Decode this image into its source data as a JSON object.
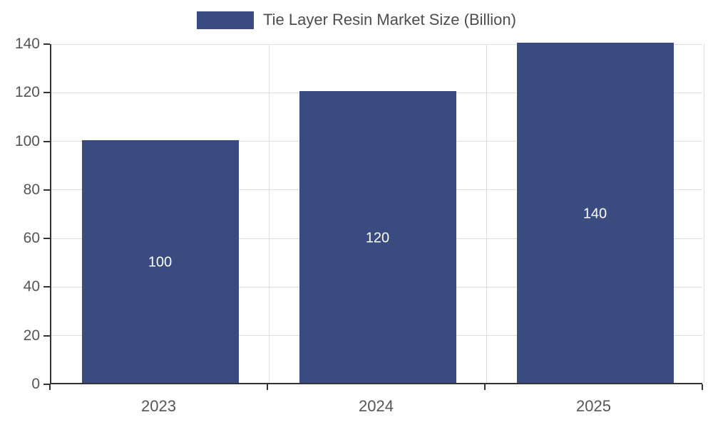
{
  "colors": {
    "bar": "#3a4b80",
    "grid": "#dddddd",
    "axis": "#333333",
    "tick_label": "#555555",
    "title": "#4d4d4d",
    "data_label": "#ffffff"
  },
  "chart_data": {
    "type": "bar",
    "title": "Tie Layer Resin Market Size (Billion)",
    "categories": [
      "2023",
      "2024",
      "2025"
    ],
    "values": [
      100,
      120,
      140
    ],
    "data_labels": [
      "100",
      "120",
      "140"
    ],
    "xlabel": "",
    "ylabel": "",
    "ylim": [
      0,
      140
    ],
    "yticks": [
      0,
      20,
      40,
      60,
      80,
      100,
      120,
      140
    ],
    "grid": true,
    "legend_position": "top-center"
  }
}
